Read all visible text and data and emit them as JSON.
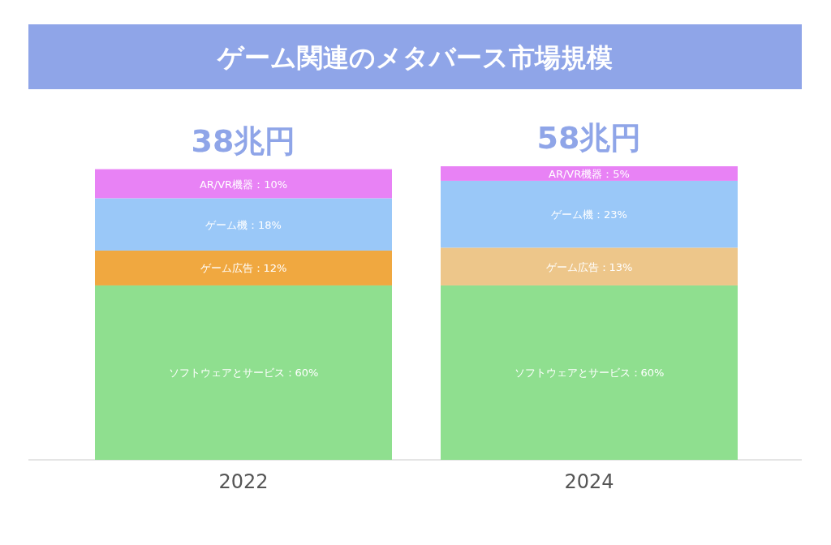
{
  "chart_data": {
    "type": "bar",
    "title": "ゲーム関連のメタバース市場規模",
    "categories": [
      "2022",
      "2024"
    ],
    "stacked": true,
    "series": [
      {
        "colors": [
          "#8fdf8f",
          "#8fdf8f"
        ],
        "values": [
          60,
          60
        ],
        "value_labels": [
          "ソフトウェアとサービス：60%",
          "ソフトウェアとサービス：60%"
        ]
      },
      {
        "colors": [
          "#f0a840",
          "#edc68a"
        ],
        "values": [
          12,
          13
        ],
        "value_labels": [
          "ゲーム広告：12%",
          "ゲーム広告：13%"
        ]
      },
      {
        "colors": [
          "#9ac8f8",
          "#9ac8f8"
        ],
        "values": [
          18,
          23
        ],
        "value_labels": [
          "ゲーム機：18%",
          "ゲーム機：23%"
        ]
      },
      {
        "colors": [
          "#e882f5",
          "#e882f5"
        ],
        "values": [
          10,
          5
        ],
        "value_labels": [
          "AR/VR機器：10%",
          "AR/VR機器：5%"
        ]
      }
    ],
    "annotations": [
      {
        "text": "38兆円",
        "x": "2022",
        "y": 100
      },
      {
        "text": "58兆円",
        "x": "2024",
        "y": 101
      }
    ]
  }
}
